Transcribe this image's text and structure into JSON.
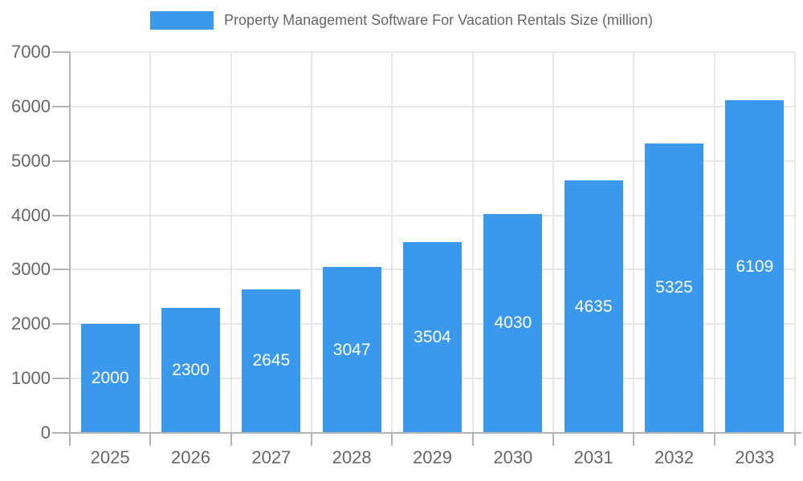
{
  "legend": {
    "label": "Property Management Software For Vacation Rentals Size (million)"
  },
  "chart_data": {
    "type": "bar",
    "title": "Property Management Software For Vacation Rentals Size (million)",
    "categories": [
      "2025",
      "2026",
      "2027",
      "2028",
      "2029",
      "2030",
      "2031",
      "2032",
      "2033"
    ],
    "values": [
      2000,
      2300,
      2645,
      3047,
      3504,
      4030,
      4635,
      5325,
      6109
    ],
    "xlabel": "",
    "ylabel": "",
    "ylim": [
      0,
      7000
    ],
    "ytick_step": 1000,
    "yticks": [
      0,
      1000,
      2000,
      3000,
      4000,
      5000,
      6000,
      7000
    ],
    "grid": true,
    "legend_position": "top",
    "value_label_position": "inside-center"
  },
  "colors": {
    "bar": "#3a99ec",
    "grid": "#e7e7e7",
    "axis": "#b3b3b3",
    "text": "#666666",
    "value_label": "#ffffff",
    "background": "#ffffff"
  }
}
